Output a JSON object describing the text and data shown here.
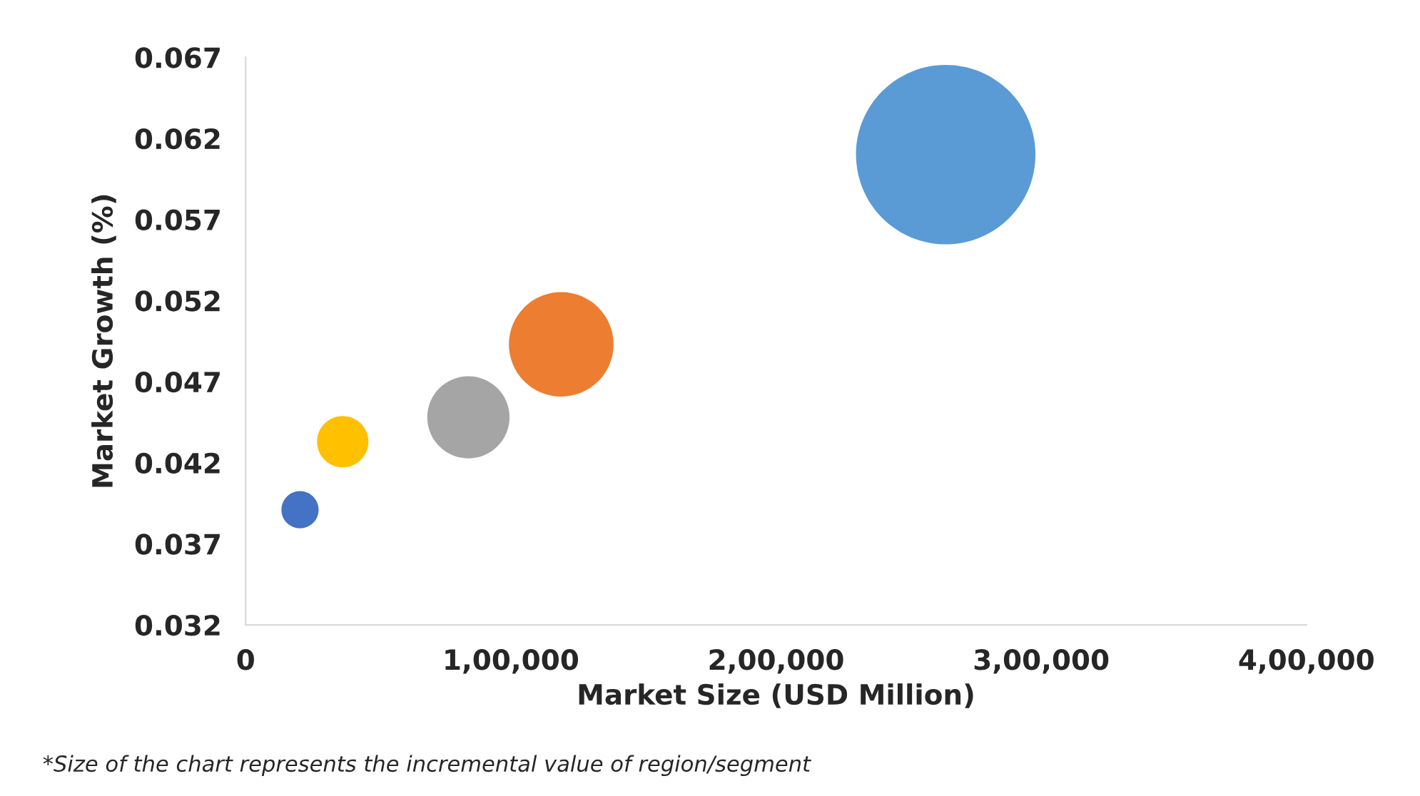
{
  "chart_data": {
    "type": "bubble",
    "x": [
      20500,
      36600,
      84000,
      119000,
      264000
    ],
    "values": [
      0.0391,
      0.0433,
      0.0448,
      0.0493,
      0.061
    ],
    "sizes": [
      0.043,
      0.082,
      0.21,
      0.34,
      1
    ],
    "colors": [
      "#4472c4",
      "#ffc000",
      "#a5a5a5",
      "#ed7d31",
      "#5b9bd5"
    ],
    "xlabel": "Market Size (USD Million)",
    "ylabel": "Market Growth (%)",
    "xlim": [
      0,
      400000
    ],
    "xticks": [
      0,
      {
        "value": 100000,
        "label": "1,00,000"
      },
      {
        "value": 200000,
        "label": "2,00,000"
      },
      {
        "value": 300000,
        "label": "3,00,000"
      },
      {
        "value": 400000,
        "label": "4,00,000"
      }
    ],
    "ylim": [
      0.032,
      0.067
    ],
    "yticks": [
      0.032,
      0.037,
      0.042,
      0.047,
      0.052,
      0.057,
      0.062,
      0.067
    ],
    "grid": false,
    "legend": false,
    "annotations": [
      "*Size of the chart represents the incremental value of region/segment"
    ]
  }
}
